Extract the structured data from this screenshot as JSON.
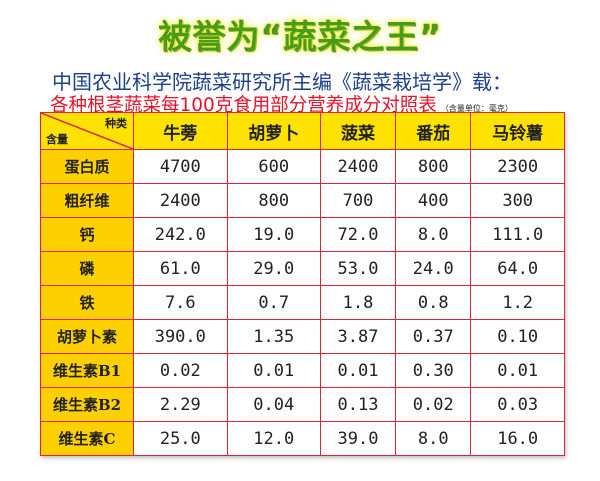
{
  "title": "被誉为“蔬菜之王”",
  "subtitle": "中国农业科学院蔬菜研究所主编《蔬菜栽培学》载：",
  "table_title": "各种根茎蔬菜每100克食用部分营养成分对照表",
  "unit_note": "（含量单位：毫克）",
  "corner": {
    "top": "种类",
    "bottom": "含量"
  },
  "columns": [
    "牛蒡",
    "胡萝卜",
    "菠菜",
    "番茄",
    "马铃薯"
  ],
  "rows": [
    {
      "label": "蛋白质",
      "values": [
        "4700",
        "600",
        "2400",
        "800",
        "2300"
      ]
    },
    {
      "label": "粗纤维",
      "values": [
        "2400",
        "800",
        "700",
        "400",
        "300"
      ]
    },
    {
      "label": "钙",
      "values": [
        "242.0",
        "19.0",
        "72.0",
        "8.0",
        "111.0"
      ]
    },
    {
      "label": "磷",
      "values": [
        "61.0",
        "29.0",
        "53.0",
        "24.0",
        "64.0"
      ]
    },
    {
      "label": "铁",
      "values": [
        "7.6",
        "0.7",
        "1.8",
        "0.8",
        "1.2"
      ]
    },
    {
      "label": "胡萝卜素",
      "values": [
        "390.0",
        "1.35",
        "3.87",
        "0.37",
        "0.10"
      ]
    },
    {
      "label": "维生素B1",
      "values": [
        "0.02",
        "0.01",
        "0.01",
        "0.30",
        "0.01"
      ]
    },
    {
      "label": "维生素B2",
      "values": [
        "2.29",
        "0.04",
        "0.13",
        "0.02",
        "0.03"
      ]
    },
    {
      "label": "维生素C",
      "values": [
        "25.0",
        "12.0",
        "39.0",
        "8.0",
        "16.0"
      ]
    }
  ],
  "colors": {
    "title": "#4a9a1c",
    "subtitle": "#1d3f8c",
    "table_title": "#e0152c",
    "header_bg": "#ffe200",
    "border": "#d8283f"
  }
}
